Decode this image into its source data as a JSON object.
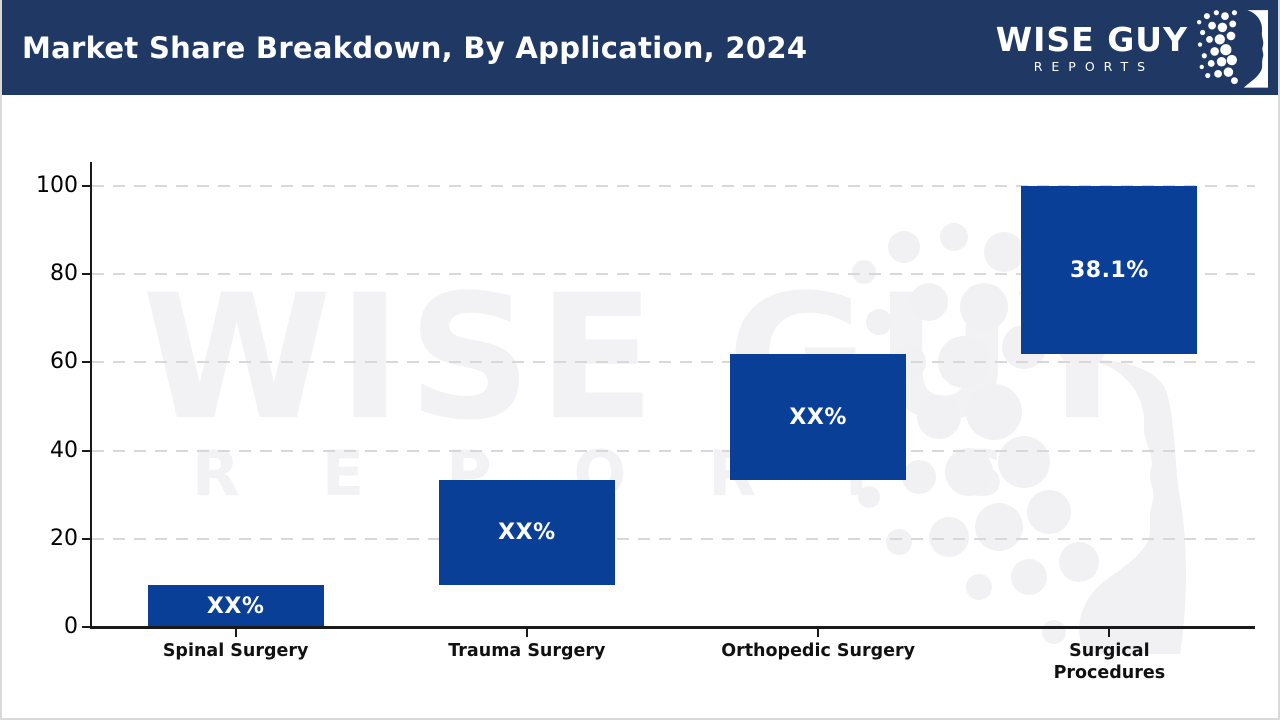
{
  "header": {
    "title": "Market Share Breakdown, By Application, 2024",
    "background_color": "#1f3864",
    "logo": {
      "name": "WISE GUY",
      "tagline": "REPORTS",
      "face_icon": "dotted-face-profile"
    }
  },
  "watermark": {
    "line1": "WISE GUY",
    "line2": "REPORTS",
    "face_icon": "dotted-face-profile"
  },
  "chart_data": {
    "type": "bar",
    "subtype": "floating-waterfall-columns",
    "title": "Market Share Breakdown, By Application, 2024",
    "categories": [
      "Spinal Surgery",
      "Trauma Surgery",
      "Orthopedic Surgery",
      "Surgical\nProcedures"
    ],
    "segments": [
      [
        0,
        9.5
      ],
      [
        9.5,
        33.3
      ],
      [
        33.3,
        61.9
      ],
      [
        61.9,
        100
      ]
    ],
    "values": [
      9.5,
      23.8,
      28.6,
      38.1
    ],
    "bar_labels": [
      "XX%",
      "XX%",
      "XX%",
      "38.1%"
    ],
    "bar_color": "#093f96",
    "label_color": "#ffffff",
    "yticks": [
      0,
      20,
      40,
      60,
      80,
      100
    ],
    "ylim": [
      0,
      100
    ],
    "xlabel": "",
    "ylabel": "",
    "grid": "horizontal-dashed",
    "gridline_color": "#d8d8d8",
    "legend": "none"
  }
}
